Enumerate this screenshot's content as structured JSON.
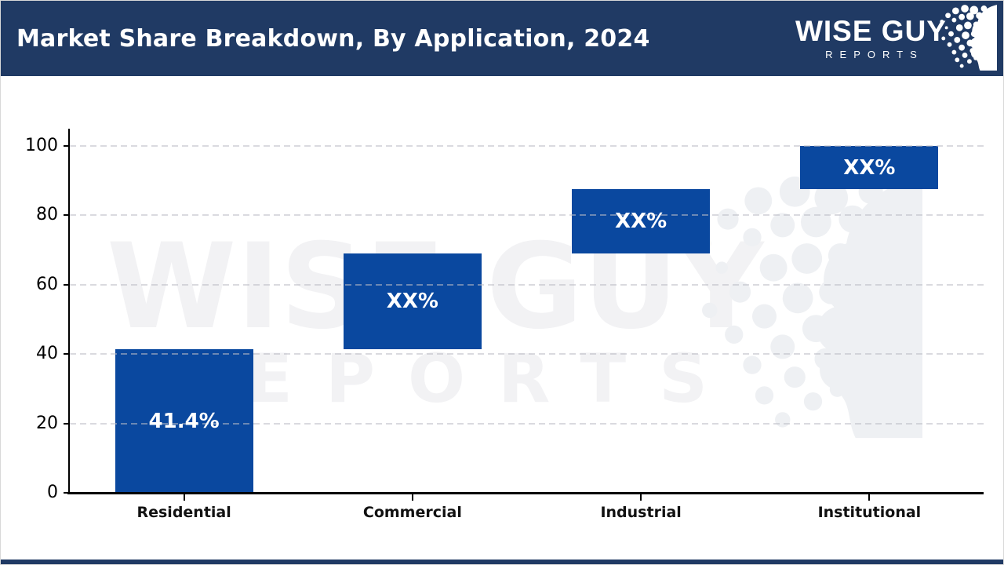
{
  "header": {
    "title": "Market Share Breakdown, By Application, 2024",
    "background_color": "#203a64",
    "logo": {
      "wordmark": "WISE GUY",
      "subtext": "REPORTS"
    }
  },
  "watermark": {
    "line1": "WISE GUY",
    "line2": "REPORTS"
  },
  "chart_data": {
    "type": "waterfall",
    "title": "Market Share Breakdown, By Application, 2024",
    "categories": [
      "Residential",
      "Commercial",
      "Industrial",
      "Institutional"
    ],
    "segments": [
      {
        "category": "Residential",
        "start": 0,
        "end": 41.4,
        "label": "41.4%"
      },
      {
        "category": "Commercial",
        "start": 41.4,
        "end": 69.0,
        "label": "XX%"
      },
      {
        "category": "Industrial",
        "start": 69.0,
        "end": 87.5,
        "label": "XX%"
      },
      {
        "category": "Institutional",
        "start": 87.5,
        "end": 100,
        "label": "XX%"
      }
    ],
    "xlabel": "",
    "ylabel": "",
    "yticks": [
      0,
      20,
      40,
      60,
      80,
      100
    ],
    "ylim": [
      0,
      105
    ],
    "grid": {
      "orientation": "horizontal",
      "style": "dashed",
      "color": "#e4e4e6",
      "above_bars": true
    },
    "legend_position": "none",
    "bar_color": "#0a489f",
    "bar_label_color": "#ffffff",
    "axis_color": "#000000"
  },
  "footer": {
    "background_color": "#203a64"
  }
}
